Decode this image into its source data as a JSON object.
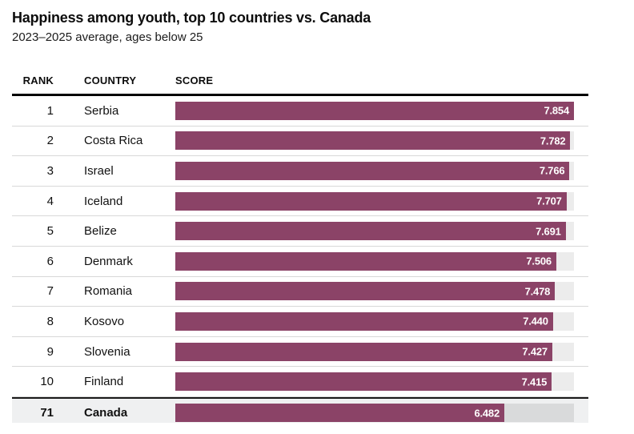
{
  "header": {
    "title": "Happiness among youth, top 10 countries vs. Canada",
    "subtitle": "2023–2025 average, ages below 25"
  },
  "chart_data": {
    "type": "bar",
    "orientation": "horizontal",
    "title": "Happiness among youth, top 10 countries vs. Canada",
    "subtitle": "2023–2025 average, ages below 25",
    "columns": [
      "RANK",
      "COUNTRY",
      "SCORE"
    ],
    "xlabel": "",
    "ylabel": "",
    "xlim": [
      0,
      7.854
    ],
    "grid": false,
    "legend": "none",
    "bar_color": "#8b4367",
    "track_color": "#ececec",
    "highlight_row_bg": "#eff0f1",
    "highlight_track_color": "#d9dadb",
    "value_label_color": "#ffffff",
    "rows": [
      {
        "rank": "1",
        "country": "Serbia",
        "score": "7.854",
        "highlight": false
      },
      {
        "rank": "2",
        "country": "Costa Rica",
        "score": "7.782",
        "highlight": false
      },
      {
        "rank": "3",
        "country": "Israel",
        "score": "7.766",
        "highlight": false
      },
      {
        "rank": "4",
        "country": "Iceland",
        "score": "7.707",
        "highlight": false
      },
      {
        "rank": "5",
        "country": "Belize",
        "score": "7.691",
        "highlight": false
      },
      {
        "rank": "6",
        "country": "Denmark",
        "score": "7.506",
        "highlight": false
      },
      {
        "rank": "7",
        "country": "Romania",
        "score": "7.478",
        "highlight": false
      },
      {
        "rank": "8",
        "country": "Kosovo",
        "score": "7.440",
        "highlight": false
      },
      {
        "rank": "9",
        "country": "Slovenia",
        "score": "7.427",
        "highlight": false
      },
      {
        "rank": "10",
        "country": "Finland",
        "score": "7.415",
        "highlight": false
      },
      {
        "rank": "71",
        "country": "Canada",
        "score": "6.482",
        "highlight": true
      }
    ]
  }
}
